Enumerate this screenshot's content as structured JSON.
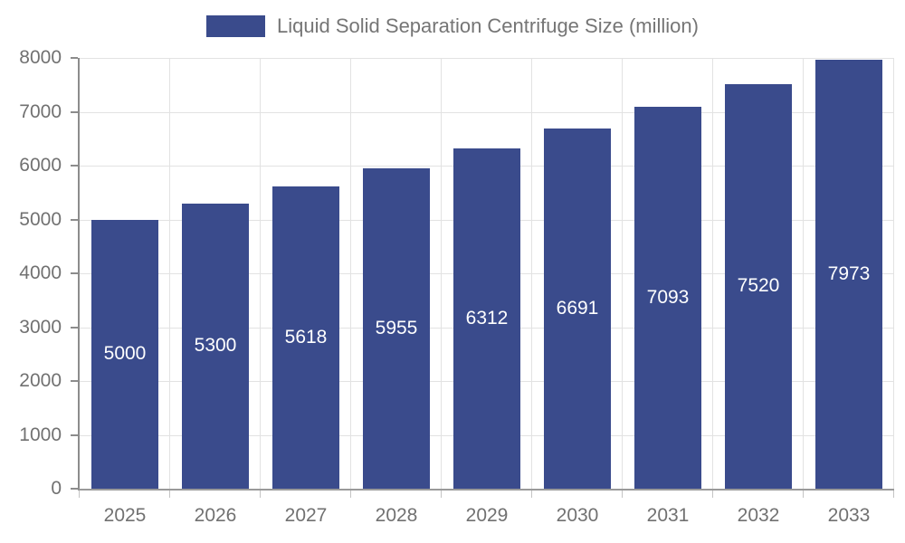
{
  "chart_data": {
    "type": "bar",
    "title": "Liquid Solid Separation Centrifuge Size (million)",
    "legend_entries": [
      "Liquid Solid Separation Centrifuge Size (million)"
    ],
    "legend_position": "top-center",
    "categories": [
      "2025",
      "2026",
      "2027",
      "2028",
      "2029",
      "2030",
      "2031",
      "2032",
      "2033"
    ],
    "series": [
      {
        "name": "Liquid Solid Separation Centrifuge Size (million)",
        "values": [
          5000,
          5300,
          5618,
          5955,
          6312,
          6691,
          7093,
          7520,
          7973
        ]
      }
    ],
    "bar_value_labels": [
      "5000",
      "5300",
      "5618",
      "5955",
      "6312",
      "6691",
      "7093",
      "7520",
      "7973"
    ],
    "xlabel": "",
    "ylabel": "",
    "ylim": [
      0,
      8000
    ],
    "yticks": [
      0,
      1000,
      2000,
      3000,
      4000,
      5000,
      6000,
      7000,
      8000
    ],
    "grid": true,
    "colors": {
      "bar": "#3A4B8C",
      "bar_label": "#FFFFFF",
      "legend_text": "#757575",
      "axis_line": "#8C8C8C",
      "gridline": "#E2E2E2",
      "tick_label": "#717171"
    }
  }
}
